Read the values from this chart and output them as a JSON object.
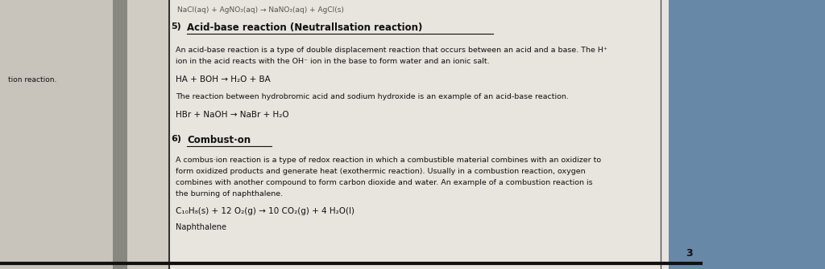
{
  "bg_color": "#b8c8d8",
  "page_bg": "#e8e4de",
  "left_strip_color": "#d0ccc4",
  "right_fabric_color": "#7090b8",
  "page_number": "3",
  "top_text": "NaCl(aq) + AgNO₃(aq) → NaNO₃(aq) + AgCl(s)",
  "left_margin_text": "tion reaction.",
  "section5_number": "5)",
  "section5_title": "Acid-base reaction (Neutrallsation reaction)",
  "section5_para1": "An acid-base reaction is a type of double displacement reaction that occurs between an acid and a base. The H⁺\nion in the acid reacts with the OH⁻ ion in the base to form water and an ionic salt.",
  "section5_formula1": "HA + BOH → H₂O + BA",
  "section5_para2": "The reaction between hydrobromic acid and sodium hydroxide is an example of an acid-base reaction.",
  "section5_formula2": "HBr + NaOH → NaBr + H₂O",
  "section6_number": "6)",
  "section6_title": "Combust·on",
  "section6_para": "A combus·ion reaction is a type of redox reaction in which a combustible material combines with an oxidizer to\nform oxidized products and generate heat (exothermic reaction). Usually in a combustion reaction, oxygen\ncombines with another compound to form carbon dioxide and water. An example of a combustion reaction is\nthe burning of naphthalene.",
  "section6_formula": "C₁₀H₈(s) + 12 O₂(g) → 10 CO₂(g) + 4 H₂O(l)",
  "section6_label": "Naphthalene",
  "text_color": "#111111",
  "line_color": "#444444"
}
